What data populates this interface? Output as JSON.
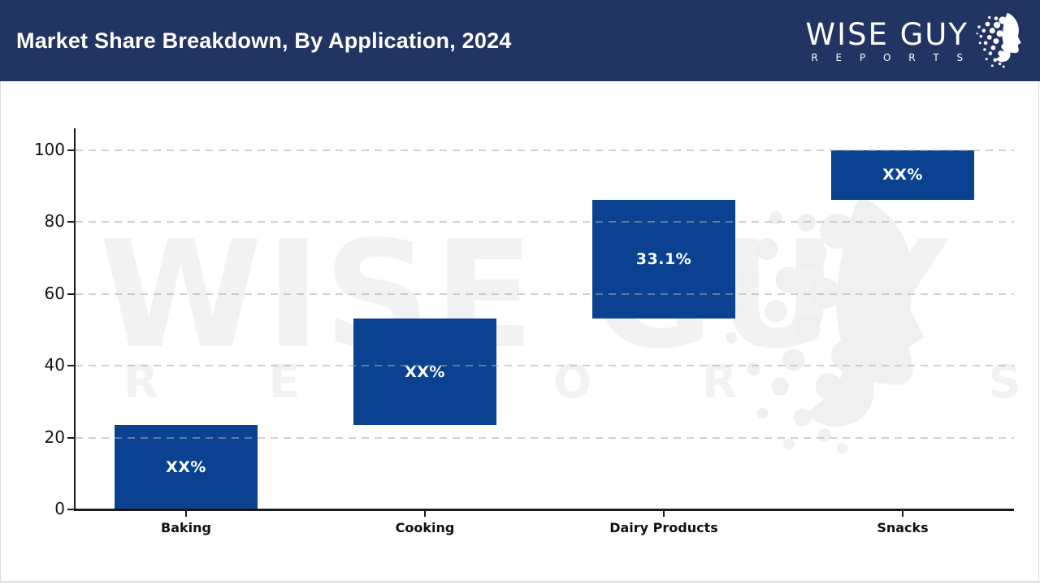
{
  "header": {
    "title": "Market Share Breakdown, By Application, 2024"
  },
  "logo": {
    "line1": "WISE GUY",
    "line2": "R E P O R T S"
  },
  "watermark": {
    "line1": "WISE GUY",
    "line2": "R E P O R T S"
  },
  "colors": {
    "header_bg": "#213462",
    "bar": "#0a4191",
    "watermark": "#f2f2f2",
    "watermark_head": "#f0f0f0",
    "axis": "#1a1a1a"
  },
  "chart_data": {
    "type": "bar",
    "subtype": "waterfall",
    "title": "Market Share Breakdown, By Application, 2024",
    "xlabel": "",
    "ylabel": "",
    "categories": [
      "Baking",
      "Cooking",
      "Dairy Products",
      "Snacks"
    ],
    "segments": [
      {
        "category": "Baking",
        "start": 0,
        "end": 23.5,
        "value": 23.5,
        "label": "XX%"
      },
      {
        "category": "Cooking",
        "start": 23.5,
        "end": 53.0,
        "value": 29.5,
        "label": "XX%"
      },
      {
        "category": "Dairy Products",
        "start": 53.0,
        "end": 86.1,
        "value": 33.1,
        "label": "33.1%"
      },
      {
        "category": "Snacks",
        "start": 86.1,
        "end": 100,
        "value": 13.9,
        "label": "XX%"
      }
    ],
    "yticks": [
      0,
      20,
      40,
      60,
      80,
      100
    ],
    "ylim": [
      0,
      106
    ],
    "grid": "horizontal dashed, drawn over bars",
    "legend": "none",
    "bar_color": "#0a4191"
  }
}
